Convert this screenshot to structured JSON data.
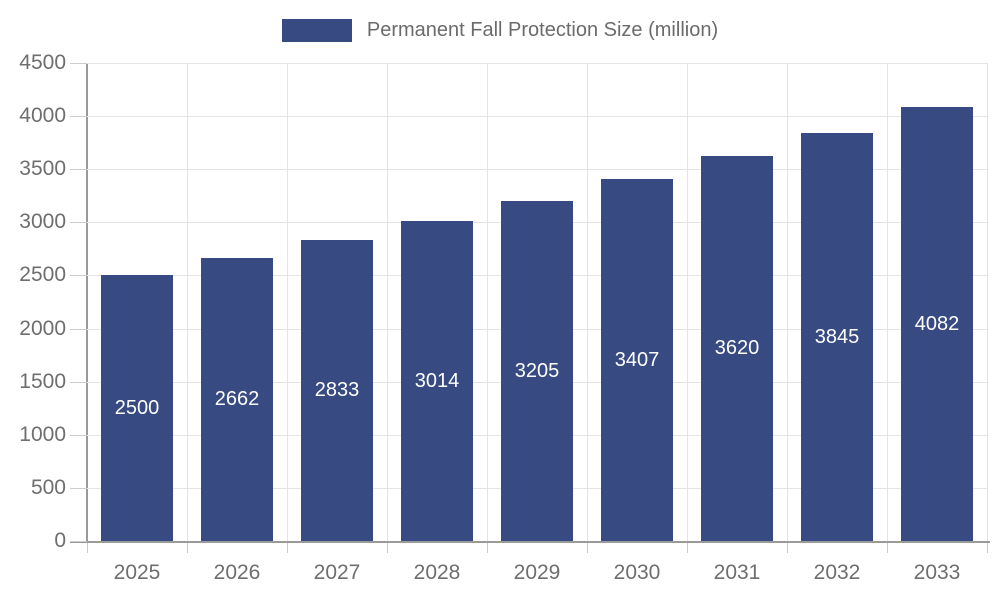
{
  "chart_data": {
    "type": "bar",
    "title": "Permanent Fall Protection Size (million)",
    "categories": [
      "2025",
      "2026",
      "2027",
      "2028",
      "2029",
      "2030",
      "2031",
      "2032",
      "2033"
    ],
    "values": [
      2500,
      2662,
      2833,
      3014,
      3205,
      3407,
      3620,
      3845,
      4082
    ],
    "xlabel": "",
    "ylabel": "",
    "ylim": [
      0,
      4500
    ],
    "ytick_step": 500,
    "grid": true,
    "legend_position": "top",
    "bar_color": "#374a82",
    "value_label_color": "#ffffff",
    "value_label_position": "center"
  }
}
